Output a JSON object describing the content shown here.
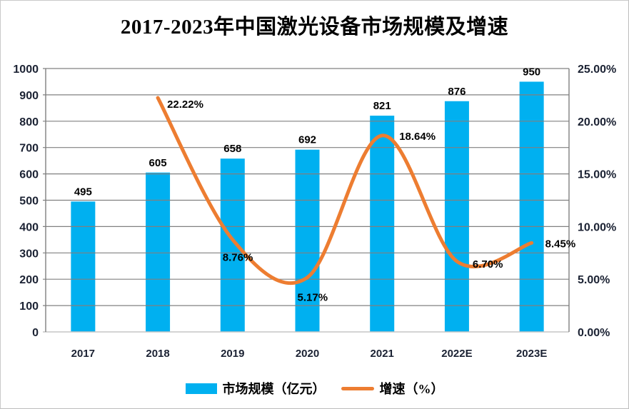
{
  "title": "2017-2023年中国激光设备市场规模及增速",
  "colors": {
    "bar": "#00B0F0",
    "line": "#ED7D31",
    "grid": "#808080",
    "frame": "#7F7F7F",
    "baseline": "#C6C6C6",
    "axis_label": "#1B2233",
    "data_label": "#000000",
    "background": "#FFFFFF"
  },
  "chart_data": {
    "type": "combo",
    "title": "2017-2023年中国激光设备市场规模及增速",
    "categories": [
      "2017",
      "2018",
      "2019",
      "2020",
      "2021",
      "2022E",
      "2023E"
    ],
    "series": [
      {
        "name": "市场规模（亿元）",
        "chart": "bar",
        "axis": "left",
        "color": "#00B0F0",
        "values": [
          495,
          605,
          658,
          692,
          821,
          876,
          950
        ],
        "labels": [
          "495",
          "605",
          "658",
          "692",
          "821",
          "876",
          "950"
        ]
      },
      {
        "name": "增速（%）",
        "chart": "line",
        "axis": "right",
        "color": "#ED7D31",
        "values": [
          null,
          22.22,
          8.76,
          5.17,
          18.64,
          6.7,
          8.45
        ],
        "labels": [
          "",
          "22.22%",
          "8.76%",
          "5.17%",
          "18.64%",
          "6.70%",
          "8.45%"
        ]
      }
    ],
    "left_axis": {
      "min": 0,
      "max": 1000,
      "step": 100,
      "tick_labels": [
        "0",
        "100",
        "200",
        "300",
        "400",
        "500",
        "600",
        "700",
        "800",
        "900",
        "1000"
      ]
    },
    "right_axis": {
      "min": 0,
      "max": 25,
      "step": 5,
      "tick_labels": [
        "0.00%",
        "5.00%",
        "10.00%",
        "15.00%",
        "20.00%",
        "25.00%"
      ]
    },
    "grid": true,
    "legend_position": "bottom"
  },
  "legend": {
    "items": [
      {
        "label": "市场规模（亿元）",
        "swatch": "bar"
      },
      {
        "label": "增速（%）",
        "swatch": "line"
      }
    ]
  }
}
